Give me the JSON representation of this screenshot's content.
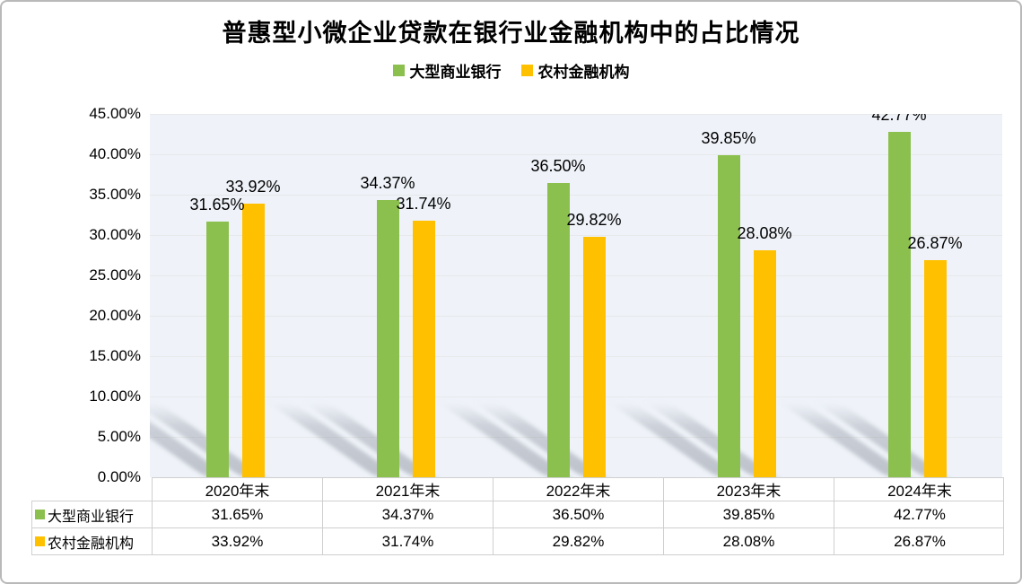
{
  "title": "普惠型小微企业贷款在银行业金融机构中的占比情况",
  "legend": {
    "items": [
      {
        "label": "大型商业银行",
        "color": "#8CC04E"
      },
      {
        "label": "农村金融机构",
        "color": "#FFC000"
      }
    ]
  },
  "chart_data": {
    "type": "bar",
    "title": "普惠型小微企业贷款在银行业金融机构中的占比情况",
    "categories": [
      "2020年末",
      "2021年末",
      "2022年末",
      "2023年末",
      "2024年末"
    ],
    "series": [
      {
        "name": "大型商业银行",
        "color": "#8CC04E",
        "values": [
          31.65,
          34.37,
          36.5,
          39.85,
          42.77
        ],
        "labels": [
          "31.65%",
          "34.37%",
          "36.50%",
          "39.85%",
          "42.77%"
        ]
      },
      {
        "name": "农村金融机构",
        "color": "#FFC000",
        "values": [
          33.92,
          31.74,
          29.82,
          28.08,
          26.87
        ],
        "labels": [
          "33.92%",
          "31.74%",
          "29.82%",
          "28.08%",
          "26.87%"
        ]
      }
    ],
    "ylim": [
      0,
      45
    ],
    "yticks": [
      "0.00%",
      "5.00%",
      "10.00%",
      "15.00%",
      "20.00%",
      "25.00%",
      "30.00%",
      "35.00%",
      "40.00%",
      "45.00%"
    ],
    "grid": true,
    "legend_position": "top",
    "data_table_shown": true,
    "bar_shadow_effect": true
  },
  "colors": {
    "plot_bg": "#EFF3F9",
    "gridline": "#E7E9EA",
    "table_border": "#CFCFCF",
    "outer_border": "#B9B9B9",
    "label_text": "#000000"
  }
}
